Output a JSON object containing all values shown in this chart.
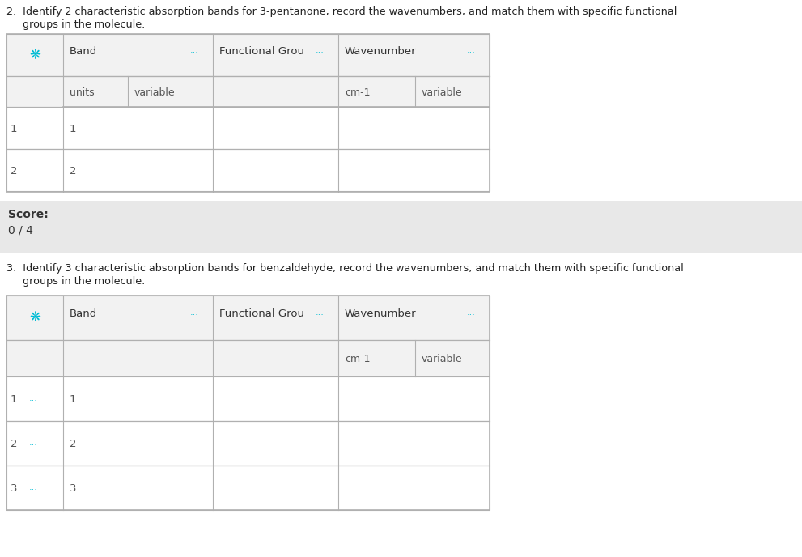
{
  "bg_color": "#ffffff",
  "cell_bg": "#f2f2f2",
  "white": "#ffffff",
  "border_color": "#b0b0b0",
  "text_dark": "#333333",
  "text_mid": "#555555",
  "cyan_color": "#00bcd4",
  "score_bg": "#e8e8e8",
  "q2_line1": "2.  Identify 2 characteristic absorption bands for 3-pentanone, record the wavenumbers, and match them with specific functional",
  "q2_line2": "     groups in the molecule.",
  "q3_line1": "3.  Identify 3 characteristic absorption bands for benzaldehyde, record the wavenumbers, and match them with specific functional",
  "q3_line2": "     groups in the molecule.",
  "col_band": "Band",
  "col_func": "Functional Grou",
  "col_wave": "Wavenumber",
  "dots": "...",
  "units": "units",
  "variable": "variable",
  "cm1": "cm-1",
  "score_label": "Score:",
  "score_val": "0 / 4",
  "fig_w": 9.91,
  "fig_h": 6.88,
  "dpi": 100
}
